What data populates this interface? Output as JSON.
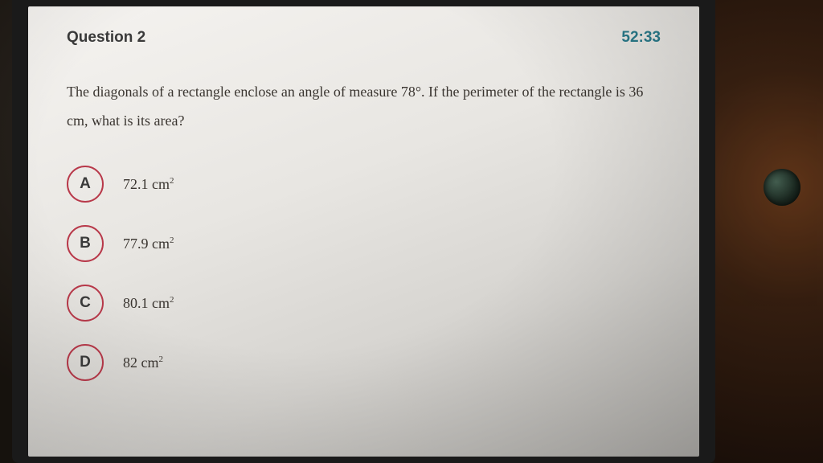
{
  "header": {
    "question_label": "Question 2",
    "timer": "52:33"
  },
  "question": {
    "text_part1": "The diagonals of a rectangle enclose an angle of measure ",
    "angle": "78°",
    "text_part2": ". If the perimeter of the rectangle is ",
    "perimeter": "36 cm",
    "text_part3": ", what is its area?"
  },
  "options": [
    {
      "letter": "A",
      "value": "72.1 cm",
      "exp": "2"
    },
    {
      "letter": "B",
      "value": "77.9 cm",
      "exp": "2"
    },
    {
      "letter": "C",
      "value": "80.1 cm",
      "exp": "2"
    },
    {
      "letter": "D",
      "value": "82 cm",
      "exp": "2"
    }
  ],
  "styles": {
    "circle_border_color": "#b8394a",
    "timer_color": "#2a7a8a",
    "body_text_color": "#3a3530",
    "heading_text_color": "#3a3a3a",
    "screen_bg_gradient": [
      "#f5f3f0",
      "#e8e6e2",
      "#d5d3cf",
      "#b8b6b2"
    ],
    "question_fontsize": 18,
    "heading_fontsize": 19,
    "option_circle_diameter": 46,
    "option_gap": 28
  }
}
